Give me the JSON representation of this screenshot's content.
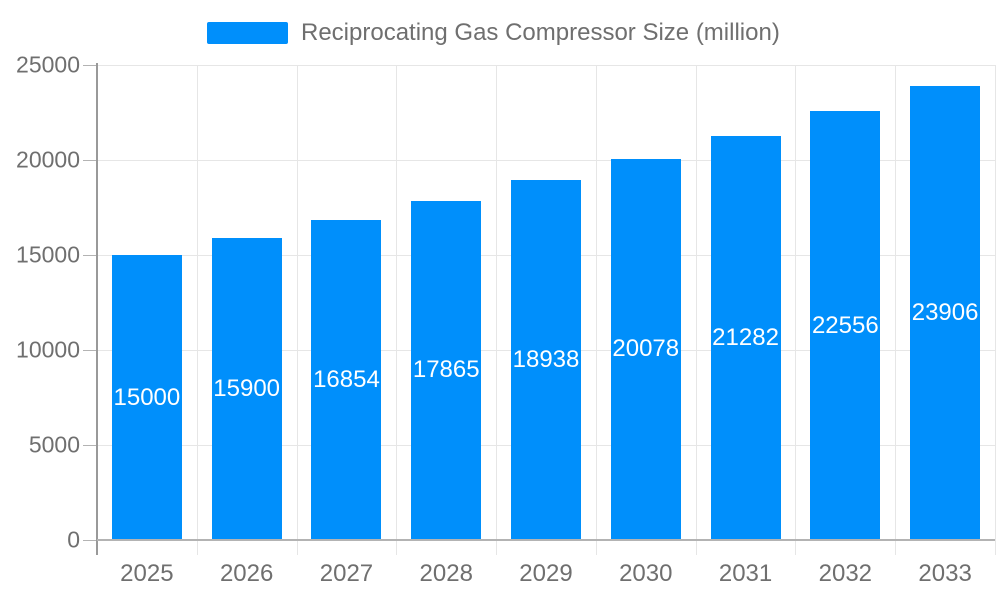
{
  "chart_data": {
    "type": "bar",
    "title": "",
    "legend": {
      "label": "Reciprocating Gas Compressor Size (million)",
      "position": "top"
    },
    "categories": [
      "2025",
      "2026",
      "2027",
      "2028",
      "2029",
      "2030",
      "2031",
      "2032",
      "2033"
    ],
    "values": [
      15000,
      15900,
      16854,
      17865,
      18938,
      20078,
      21282,
      22556,
      23906
    ],
    "xlabel": "",
    "ylabel": "",
    "ylim": [
      0,
      25000
    ],
    "yticks": [
      0,
      5000,
      10000,
      15000,
      20000,
      25000
    ],
    "grid": true,
    "legend_position": "top",
    "colors": {
      "bar": "#008FFB",
      "value_label": "#ffffff",
      "axis_text": "#6f6f6f",
      "gridline": "#e6e6e6",
      "axis_line": "#999999",
      "baseline": "#b3b3b3",
      "background": "#ffffff"
    }
  }
}
